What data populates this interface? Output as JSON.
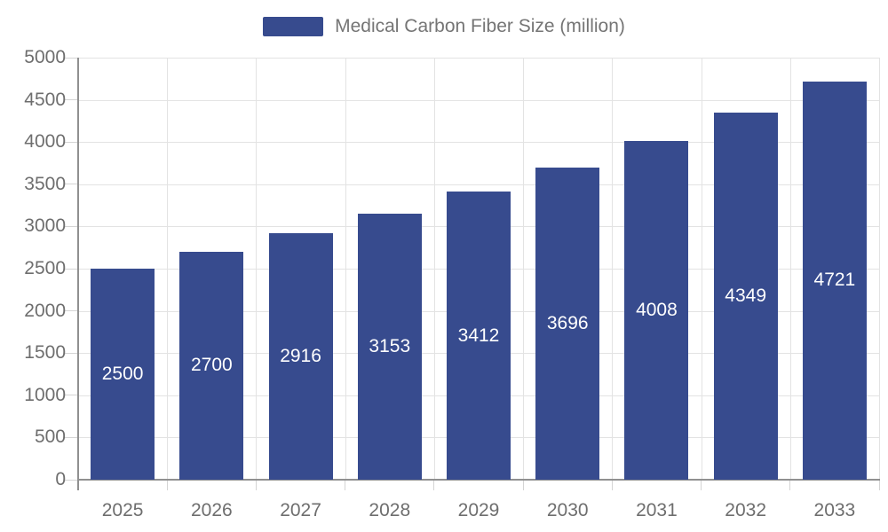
{
  "legend": {
    "label": "Medical Carbon Fiber Size (million)"
  },
  "colors": {
    "bar": "#374b8e",
    "grid_line": "#e3e3e3",
    "axis_line": "#909090",
    "tick": "#d4d4d4",
    "axis_text": "#6e6e6e",
    "legend_text": "#757575",
    "value_text": "#ffffff",
    "background": "#ffffff"
  },
  "chart_data": {
    "type": "bar",
    "title": "Medical Carbon Fiber Size (million)",
    "series_name": "Medical Carbon Fiber Size (million)",
    "categories": [
      "2025",
      "2026",
      "2027",
      "2028",
      "2029",
      "2030",
      "2031",
      "2032",
      "2033"
    ],
    "values": [
      2500,
      2700,
      2916,
      3153,
      3412,
      3696,
      4008,
      4349,
      4721
    ],
    "value_labels": [
      "2500",
      "2700",
      "2916",
      "3153",
      "3412",
      "3696",
      "4008",
      "4349",
      "4721"
    ],
    "xlabel": "",
    "ylabel": "",
    "ylim": [
      0,
      5000
    ],
    "ytick_step": 500,
    "yticks": [
      0,
      500,
      1000,
      1500,
      2000,
      2500,
      3000,
      3500,
      4000,
      4500,
      5000
    ],
    "grid": true,
    "legend_position": "top-center",
    "value_label_position": "inside-center"
  }
}
